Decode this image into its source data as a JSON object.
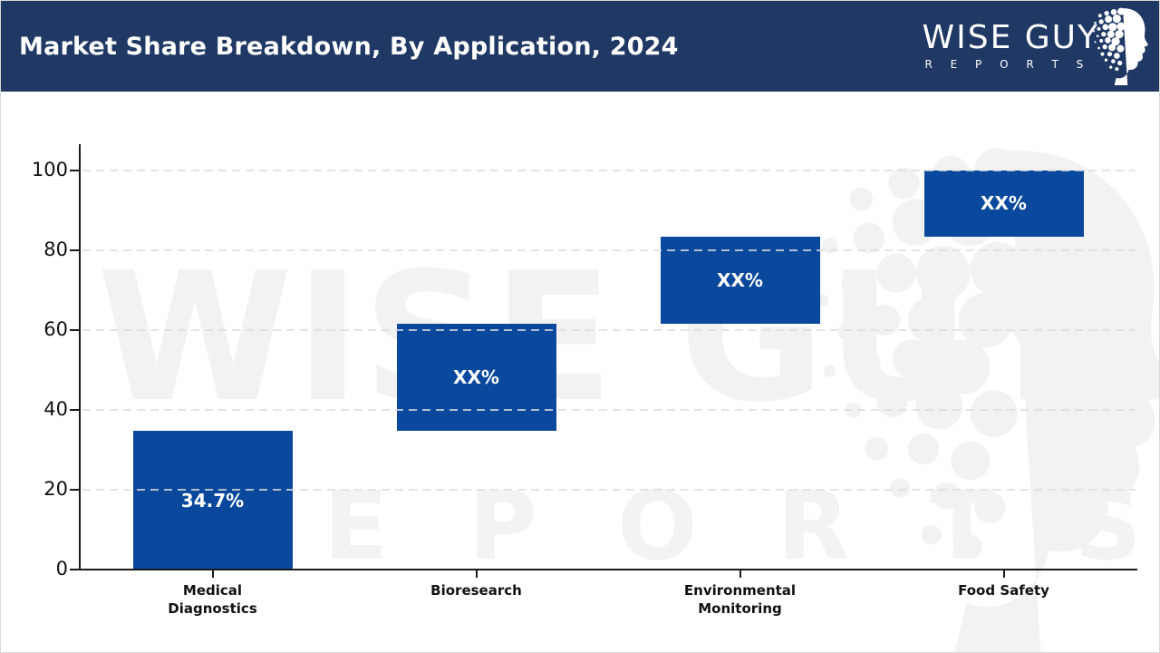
{
  "header": {
    "title": "Market Share Breakdown, By Application, 2024",
    "bg_color": "#1f3864",
    "logo": {
      "line1": "WISE GUY",
      "line2": "R E P O R T S",
      "face_icon": "dotted-head-profile"
    }
  },
  "watermark": {
    "line1": "WISE GUY",
    "line2": "R E P O R T S",
    "face_icon": "dotted-head-profile",
    "color": "#f2f2f2"
  },
  "chart_data": {
    "type": "bar",
    "variant": "floating-waterfall",
    "title": "Market Share Breakdown, By Application, 2024",
    "categories": [
      "Medical Diagnostics",
      "Bioresearch",
      "Environmental Monitoring",
      "Food Safety"
    ],
    "segments": [
      {
        "category": "Medical Diagnostics",
        "start": 0,
        "end": 34.7,
        "label": "34.7%"
      },
      {
        "category": "Bioresearch",
        "start": 34.7,
        "end": 61.5,
        "label": "XX%"
      },
      {
        "category": "Environmental Monitoring",
        "start": 61.5,
        "end": 83.5,
        "label": "XX%"
      },
      {
        "category": "Food Safety",
        "start": 83.5,
        "end": 100,
        "label": "XX%"
      }
    ],
    "yticks": [
      0,
      20,
      40,
      60,
      80,
      100
    ],
    "ylim": [
      0,
      100
    ],
    "xlabel": "",
    "ylabel": "",
    "grid": "horizontal-dashed",
    "gridline_color": "#e0e0e0",
    "bar_color": "#09489c",
    "bar_label_color": "#ffffff",
    "axis_color": "#1a1a1a",
    "legend": null
  }
}
